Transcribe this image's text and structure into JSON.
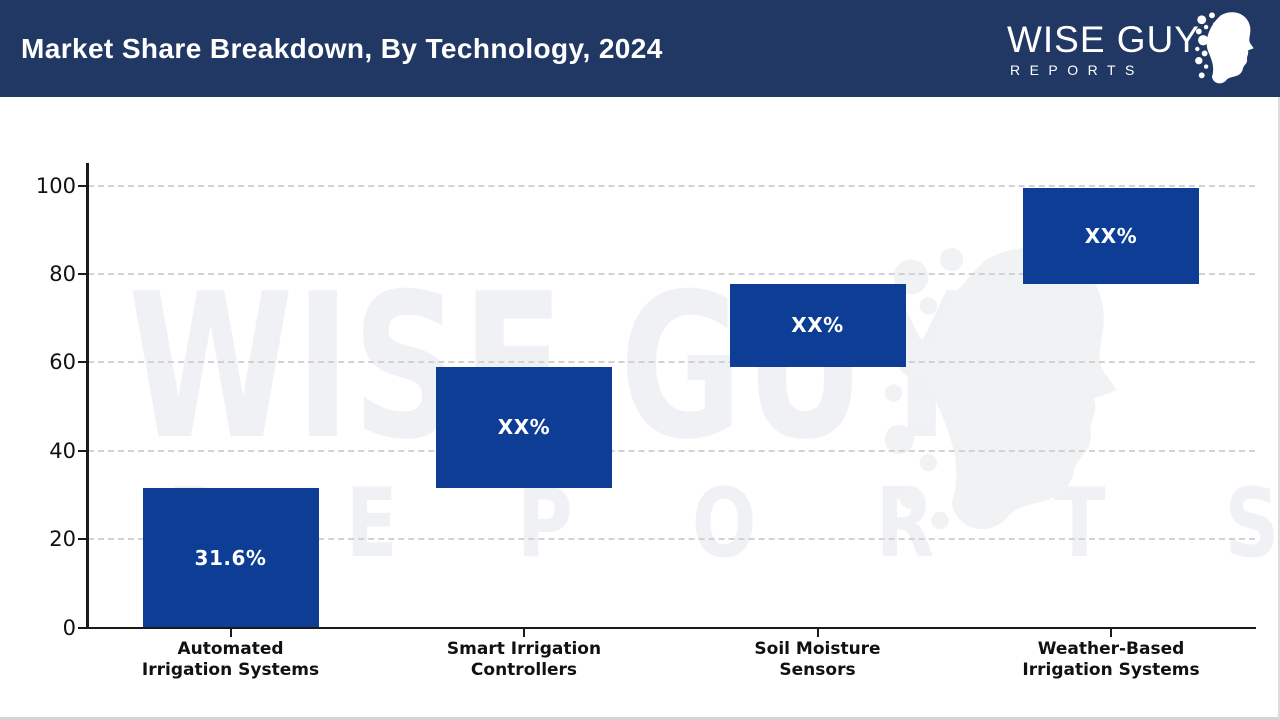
{
  "header": {
    "title": "Market Share Breakdown, By Technology, 2024",
    "bg_color": "#213865",
    "logo": {
      "line1": "WISE GUY",
      "line2": "REPORTS"
    }
  },
  "watermark": {
    "line1": "WISE GUY",
    "line2": "R E P O R T S"
  },
  "chart_data": {
    "type": "bar",
    "subtype": "waterfall",
    "title": "Market Share Breakdown, By Technology, 2024",
    "categories": [
      [
        "Automated",
        "Irrigation Systems"
      ],
      [
        "Smart Irrigation",
        "Controllers"
      ],
      [
        "Soil Moisture",
        "Sensors"
      ],
      [
        "Weather-Based",
        "Irrigation Systems"
      ]
    ],
    "bars": [
      {
        "start": 0,
        "end": 31.6,
        "label": "31.6%"
      },
      {
        "start": 31.6,
        "end": 59,
        "label": "XX%"
      },
      {
        "start": 59,
        "end": 77.8,
        "label": "XX%"
      },
      {
        "start": 77.8,
        "end": 99.5,
        "label": "XX%"
      }
    ],
    "xlabel": "",
    "ylabel": "",
    "ylim": [
      0,
      105
    ],
    "yticks": [
      0,
      20,
      40,
      60,
      80,
      100
    ],
    "grid": "horizontal-dashed",
    "legend": "none",
    "bar_color": "#0d3d94",
    "bar_label_color": "#ffffff",
    "grid_color": "#d2d2d2",
    "axis_color": "#1a1a1a"
  }
}
